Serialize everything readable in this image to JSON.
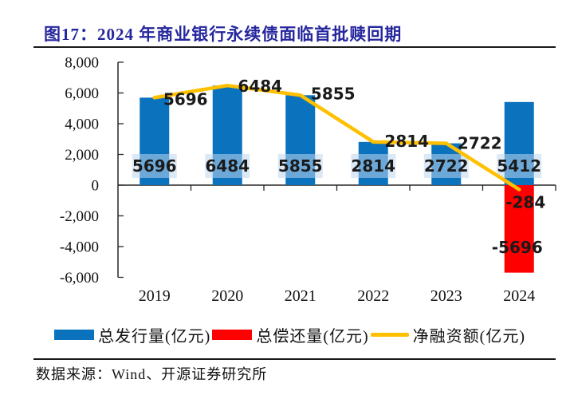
{
  "title": "图17：2024 年商业银行永续债面临首批赎回期",
  "source": "数据来源：Wind、开源证券研究所",
  "colors": {
    "title_text": "#26269E",
    "issuance_bar": "#0B72BE",
    "repayment_bar": "#FE0000",
    "net_line": "#FFC000",
    "label_box": "rgba(189,215,238,0.55)",
    "axis": "#262626"
  },
  "legend": {
    "items": [
      {
        "label": "总发行量(亿元)",
        "color": "#0B72BE",
        "type": "bar"
      },
      {
        "label": "总偿还量(亿元)",
        "color": "#FE0000",
        "type": "bar"
      },
      {
        "label": "净融资额(亿元)",
        "color": "#FFC000",
        "type": "line"
      }
    ]
  },
  "chart_data": {
    "type": "bar+line",
    "title": "图17：2024 年商业银行永续债面临首批赎回期",
    "categories": [
      "2019",
      "2020",
      "2021",
      "2022",
      "2023",
      "2024"
    ],
    "series": [
      {
        "name": "总发行量(亿元)",
        "type": "bar",
        "color": "#0B72BE",
        "values": [
          5696,
          6484,
          5855,
          2814,
          2722,
          5412
        ]
      },
      {
        "name": "总偿还量(亿元)",
        "type": "bar",
        "color": "#FE0000",
        "values": [
          null,
          null,
          null,
          null,
          null,
          -5696
        ]
      },
      {
        "name": "净融资额(亿元)",
        "type": "line",
        "color": "#FFC000",
        "values": [
          5696,
          6484,
          5855,
          2814,
          2722,
          -284
        ]
      }
    ],
    "bar_labels_inside": [
      "5696",
      "6484",
      "5855",
      "2814",
      "2722",
      "5412"
    ],
    "line_labels": [
      "5696",
      "6484",
      "5855",
      "2814",
      "2722",
      "-284"
    ],
    "repayment_bar_label": "-5696",
    "ylim": [
      -6000,
      8000
    ],
    "y_tick_interval": 2000,
    "y_ticks": [
      "8,000",
      "6,000",
      "4,000",
      "2,000",
      "0",
      "-2,000",
      "-4,000",
      "-6,000"
    ],
    "y_tick_values": [
      8000,
      6000,
      4000,
      2000,
      0,
      -2000,
      -4000,
      -6000
    ],
    "grid": false,
    "legend_position": "bottom"
  }
}
